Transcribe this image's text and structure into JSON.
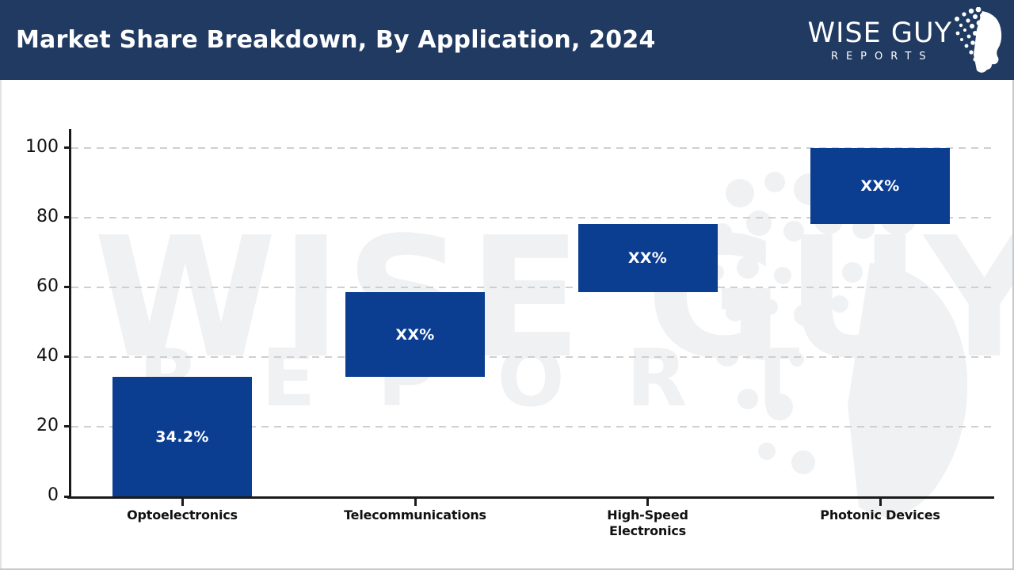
{
  "header": {
    "title": "Market Share Breakdown, By Application, 2024",
    "bg_color": "#203a62",
    "logo": {
      "line1": "WISE GUY",
      "line2": "REPORTS"
    }
  },
  "watermark": {
    "line1": "WISE GUY",
    "line2": "REPORTS"
  },
  "chart_data": {
    "type": "bar",
    "subtype": "waterfall",
    "title": "Market Share Breakdown, By Application, 2024",
    "xlabel": "",
    "ylabel": "",
    "ylim": [
      0,
      100
    ],
    "yticks": [
      0,
      20,
      40,
      60,
      80,
      100
    ],
    "grid": "horizontal-dashed",
    "bar_color": "#0b3d91",
    "value_label_color": "#ffffff",
    "categories": [
      "Optoelectronics",
      "Telecommunications",
      "High-Speed\nElectronics",
      "Photonic Devices"
    ],
    "segments": [
      {
        "category": "Optoelectronics",
        "start": 0,
        "end": 34.2,
        "label": "34.2%"
      },
      {
        "category": "Telecommunications",
        "start": 34.2,
        "end": 58.5,
        "label": "XX%"
      },
      {
        "category": "High-Speed Electronics",
        "start": 58.5,
        "end": 78.1,
        "label": "XX%"
      },
      {
        "category": "Photonic Devices",
        "start": 78.1,
        "end": 100,
        "label": "XX%"
      }
    ]
  }
}
